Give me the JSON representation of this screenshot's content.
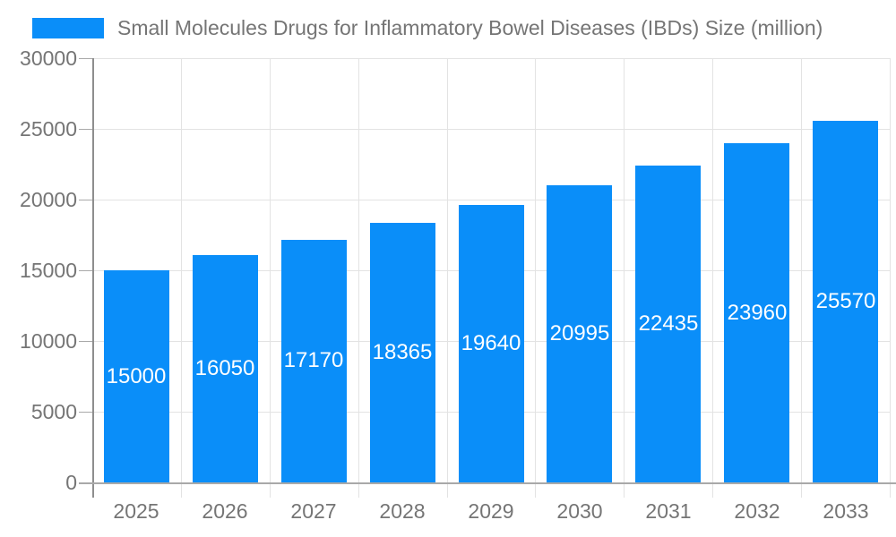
{
  "legend": {
    "label": "Small Molecules Drugs for Inflammatory Bowel Diseases (IBDs) Size (million)"
  },
  "colors": {
    "bar": "#0a8ef9",
    "value_label": "#ffffff",
    "axis_label": "#757575",
    "grid_line": "#e3e3e3",
    "y_axis_line": "#8e8e8e",
    "x_axis_line": "#a9a9a9",
    "background": "#ffffff"
  },
  "chart_data": {
    "type": "bar",
    "title": "Small Molecules Drugs for Inflammatory Bowel Diseases (IBDs) Size (million)",
    "categories": [
      "2025",
      "2026",
      "2027",
      "2028",
      "2029",
      "2030",
      "2031",
      "2032",
      "2033"
    ],
    "values": [
      15000,
      16050,
      17170,
      18365,
      19640,
      20995,
      22435,
      23960,
      25570
    ],
    "xlabel": "",
    "ylabel": "",
    "ylim": [
      0,
      30000
    ],
    "yticks": [
      0,
      5000,
      10000,
      15000,
      20000,
      25000,
      30000
    ],
    "grid": true,
    "legend_position": "top-left",
    "data_labels": "inside-center-white",
    "bar_color": "#0a8ef9"
  }
}
